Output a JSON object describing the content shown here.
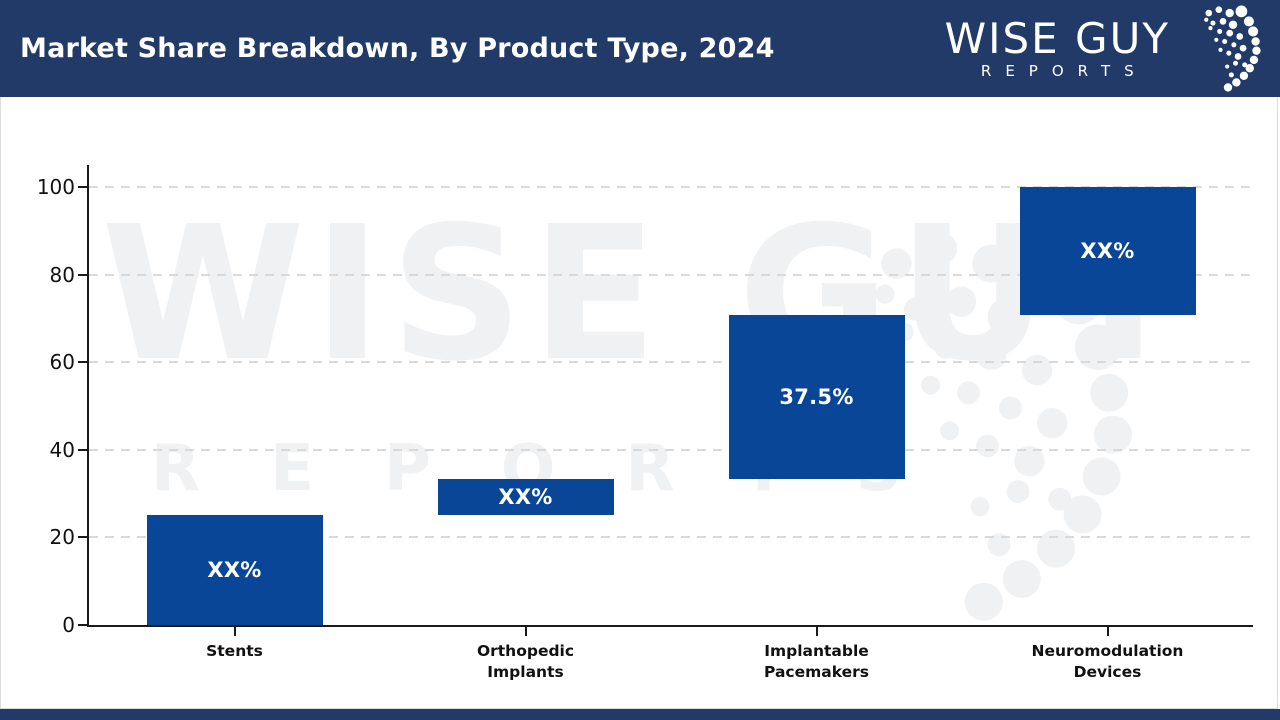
{
  "header": {
    "title": "Market Share Breakdown, By Product Type, 2024",
    "logo_line1": "WISE GUY",
    "logo_line2": "REPORTS"
  },
  "watermark": {
    "line1": "WISE GUY",
    "line2": "REPORTS"
  },
  "chart_data": {
    "type": "bar",
    "variant": "floating-waterfall",
    "title": "Market Share Breakdown, By Product Type, 2024",
    "categories": [
      "Stents",
      "Orthopedic\nImplants",
      "Implantable\nPacemakers",
      "Neuromodulation\nDevices"
    ],
    "series": [
      {
        "name": "Market share (%)",
        "segments": [
          {
            "category": "Stents",
            "start": 0,
            "end": 25,
            "label": "XX%"
          },
          {
            "category": "Orthopedic Implants",
            "start": 25,
            "end": 33.3,
            "label": "XX%"
          },
          {
            "category": "Implantable Pacemakers",
            "start": 33.3,
            "end": 70.8,
            "label": "37.5%"
          },
          {
            "category": "Neuromodulation Devices",
            "start": 70.8,
            "end": 100,
            "label": "XX%"
          }
        ]
      }
    ],
    "yticks": [
      0,
      20,
      40,
      60,
      80,
      100
    ],
    "ylim": [
      0,
      105
    ],
    "xlabel": "",
    "ylabel": "",
    "grid": "horizontal-dashed",
    "legend": "none",
    "colors": {
      "bar": "#0a4697",
      "header_bg": "#223a67",
      "grid": "#d9d9d9",
      "axis": "#1a1a1a",
      "watermark": "#f0f1f3",
      "bar_label": "#ffffff"
    }
  }
}
